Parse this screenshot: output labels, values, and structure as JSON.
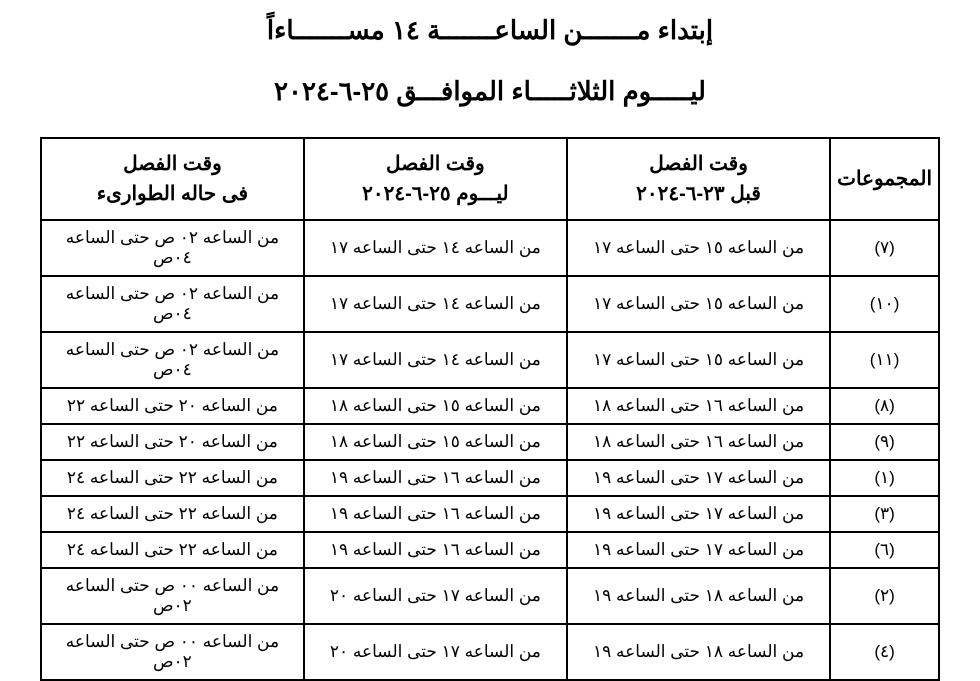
{
  "document": {
    "title_line_1": "إبتداء مـــــــن الساعـــــــة ١٤ مســـــــاءاً",
    "title_line_2": "ليـــــوم الثلاثـــــاء الموافـــق ٢٥-٦-٢٠٢٤"
  },
  "table": {
    "columns": [
      "المجموعات",
      "وقت الفصل\nقبل ٢٣-٦-٢٠٢٤",
      "وقت الفصل\nليـــوم ٢٥-٦-٢٠٢٤",
      "وقت الفصل\nفى حاله الطوارىء"
    ],
    "rows": [
      [
        "(٧)",
        "من الساعه ١٥ حتى الساعه ١٧",
        "من الساعه ١٤ حتى الساعه ١٧",
        "من الساعه ٠٢ ص حتى الساعه ٠٤ص"
      ],
      [
        "(١٠)",
        "من الساعه ١٥ حتى الساعه ١٧",
        "من الساعه ١٤ حتى الساعه ١٧",
        "من الساعه ٠٢ ص حتى الساعه ٠٤ص"
      ],
      [
        "(١١)",
        "من الساعه ١٥ حتى الساعه ١٧",
        "من الساعه ١٤ حتى الساعه ١٧",
        "من الساعه ٠٢ ص حتى الساعه ٠٤ص"
      ],
      [
        "(٨)",
        "من الساعه ١٦ حتى الساعه ١٨",
        "من الساعه ١٥ حتى الساعه ١٨",
        "من الساعه ٢٠ حتى الساعه ٢٢"
      ],
      [
        "(٩)",
        "من الساعه ١٦ حتى الساعه ١٨",
        "من الساعه ١٥ حتى الساعه ١٨",
        "من الساعه ٢٠ حتى الساعه ٢٢"
      ],
      [
        "(١)",
        "من الساعه ١٧ حتى الساعه ١٩",
        "من الساعه ١٦ حتى الساعه ١٩",
        "من الساعه ٢٢ حتى الساعه ٢٤"
      ],
      [
        "(٣)",
        "من الساعه ١٧ حتى الساعه ١٩",
        "من الساعه ١٦ حتى الساعه ١٩",
        "من الساعه ٢٢ حتى الساعه ٢٤"
      ],
      [
        "(٦)",
        "من الساعه ١٧ حتى الساعه ١٩",
        "من الساعه ١٦ حتى الساعه ١٩",
        "من الساعه ٢٢ حتى الساعه ٢٤"
      ],
      [
        "(٢)",
        "من الساعه ١٨ حتى الساعه ١٩",
        "من الساعه ١٧ حتى الساعه ٢٠",
        "من الساعه ٠٠ ص حتى الساعه ٠٢ص"
      ],
      [
        "(٤)",
        "من الساعه ١٨ حتى الساعه ١٩",
        "من الساعه ١٧ حتى الساعه ٢٠",
        "من الساعه ٠٠ ص حتى الساعه ٠٢ص"
      ]
    ],
    "column_widths": [
      "10%",
      "30%",
      "30%",
      "30%"
    ],
    "border_color": "#000000",
    "text_color": "#000000",
    "background_color": "#ffffff",
    "header_fontsize": 20,
    "cell_fontsize": 17
  }
}
